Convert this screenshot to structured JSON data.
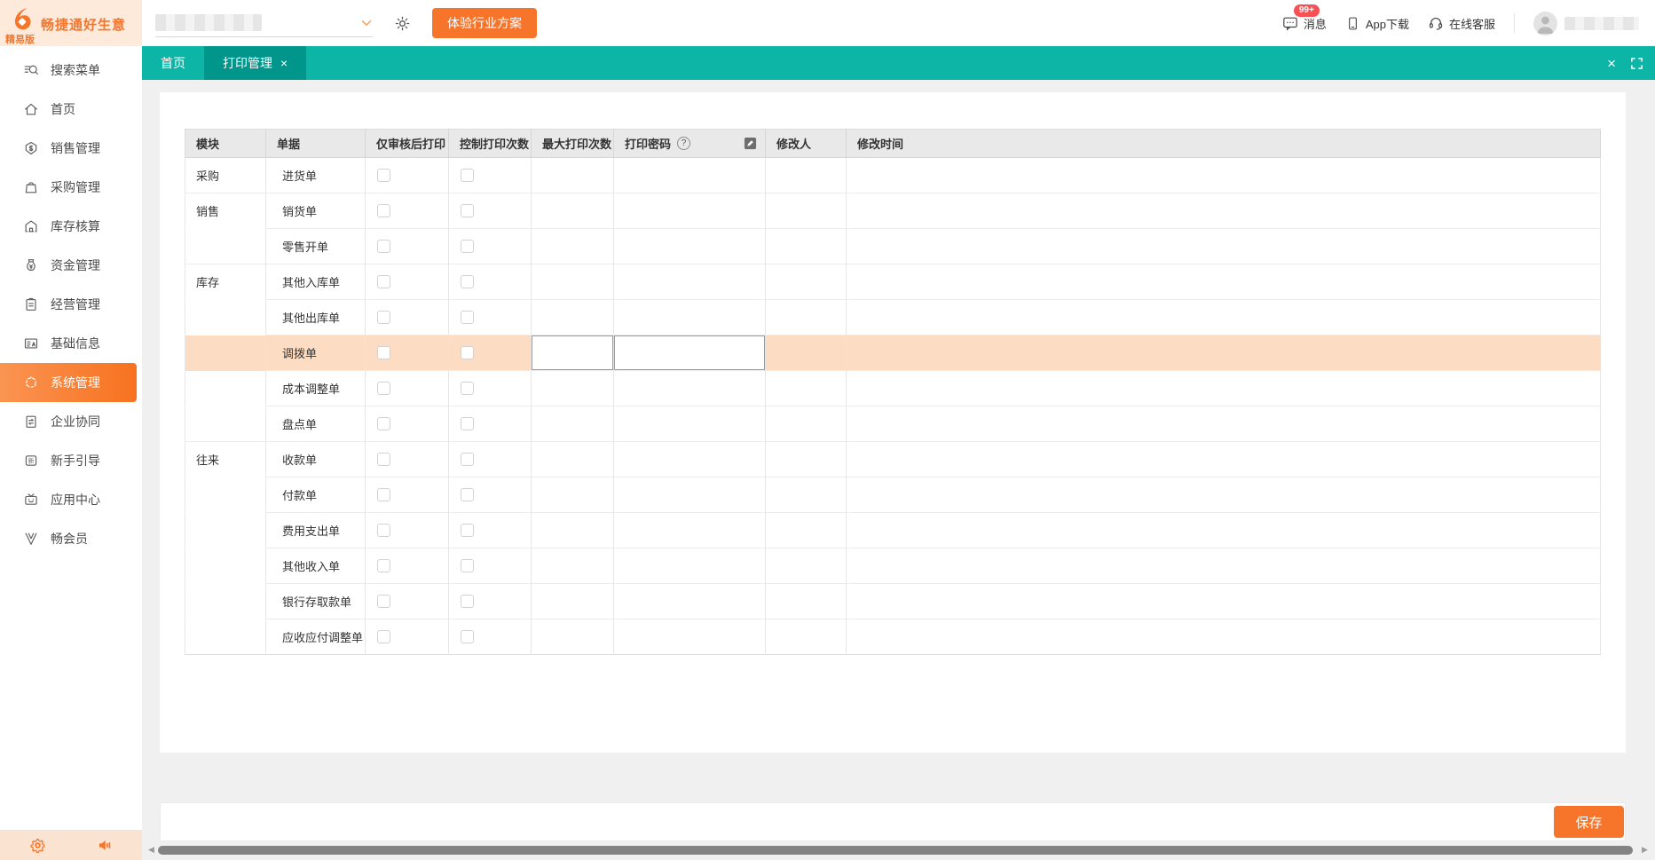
{
  "brand": {
    "name": "畅捷通好生意",
    "edition": "精易版"
  },
  "topbar": {
    "trial_button": "体验行业方案",
    "messages_label": "消息",
    "messages_badge": "99+",
    "app_download_label": "App下载",
    "online_service_label": "在线客服"
  },
  "tabbar": {
    "tabs": [
      {
        "label": "首页",
        "active": false,
        "closable": false
      },
      {
        "label": "打印管理",
        "active": true,
        "closable": true
      }
    ],
    "close_all": "×"
  },
  "sidebar": {
    "items": [
      {
        "label": "搜索菜单",
        "icon": "search-icon",
        "active": false
      },
      {
        "label": "首页",
        "icon": "home-icon",
        "active": false
      },
      {
        "label": "销售管理",
        "icon": "sales-icon",
        "active": false
      },
      {
        "label": "采购管理",
        "icon": "purchase-icon",
        "active": false
      },
      {
        "label": "库存核算",
        "icon": "inventory-icon",
        "active": false
      },
      {
        "label": "资金管理",
        "icon": "funds-icon",
        "active": false
      },
      {
        "label": "经营管理",
        "icon": "business-icon",
        "active": false
      },
      {
        "label": "基础信息",
        "icon": "base-info-icon",
        "active": false
      },
      {
        "label": "系统管理",
        "icon": "system-icon",
        "active": true
      },
      {
        "label": "企业协同",
        "icon": "collaboration-icon",
        "active": false
      },
      {
        "label": "新手引导",
        "icon": "guide-icon",
        "active": false
      },
      {
        "label": "应用中心",
        "icon": "app-center-icon",
        "active": false
      },
      {
        "label": "畅会员",
        "icon": "member-icon",
        "active": false
      }
    ]
  },
  "table": {
    "columns": [
      "模块",
      "单据",
      "仅审核后打印",
      "控制打印次数",
      "最大打印次数",
      "打印密码",
      "修改人",
      "修改时间"
    ],
    "rows": [
      {
        "module": "采购",
        "doc": "进货单",
        "group_start": true,
        "highlighted": false
      },
      {
        "module": "销售",
        "doc": "销货单",
        "group_start": true,
        "highlighted": false
      },
      {
        "module": "",
        "doc": "零售开单",
        "group_start": false,
        "highlighted": false
      },
      {
        "module": "库存",
        "doc": "其他入库单",
        "group_start": true,
        "highlighted": false
      },
      {
        "module": "",
        "doc": "其他出库单",
        "group_start": false,
        "highlighted": false
      },
      {
        "module": "",
        "doc": "调拨单",
        "group_start": false,
        "highlighted": true
      },
      {
        "module": "",
        "doc": "成本调整单",
        "group_start": false,
        "highlighted": false
      },
      {
        "module": "",
        "doc": "盘点单",
        "group_start": false,
        "highlighted": false
      },
      {
        "module": "往来",
        "doc": "收款单",
        "group_start": true,
        "highlighted": false
      },
      {
        "module": "",
        "doc": "付款单",
        "group_start": false,
        "highlighted": false
      },
      {
        "module": "",
        "doc": "费用支出单",
        "group_start": false,
        "highlighted": false
      },
      {
        "module": "",
        "doc": "其他收入单",
        "group_start": false,
        "highlighted": false
      },
      {
        "module": "",
        "doc": "银行存取款单",
        "group_start": false,
        "highlighted": false
      },
      {
        "module": "",
        "doc": "应收应付调整单",
        "group_start": false,
        "highlighted": false
      }
    ]
  },
  "footer": {
    "save_button": "保存"
  },
  "colors": {
    "accent_orange": "#f7752b",
    "teal_bar": "#0db5a7",
    "teal_active_tab": "#00968b",
    "highlight_row": "#fcdcc2",
    "badge_red": "#f85055",
    "sidebar_peach": "#fdeada"
  }
}
